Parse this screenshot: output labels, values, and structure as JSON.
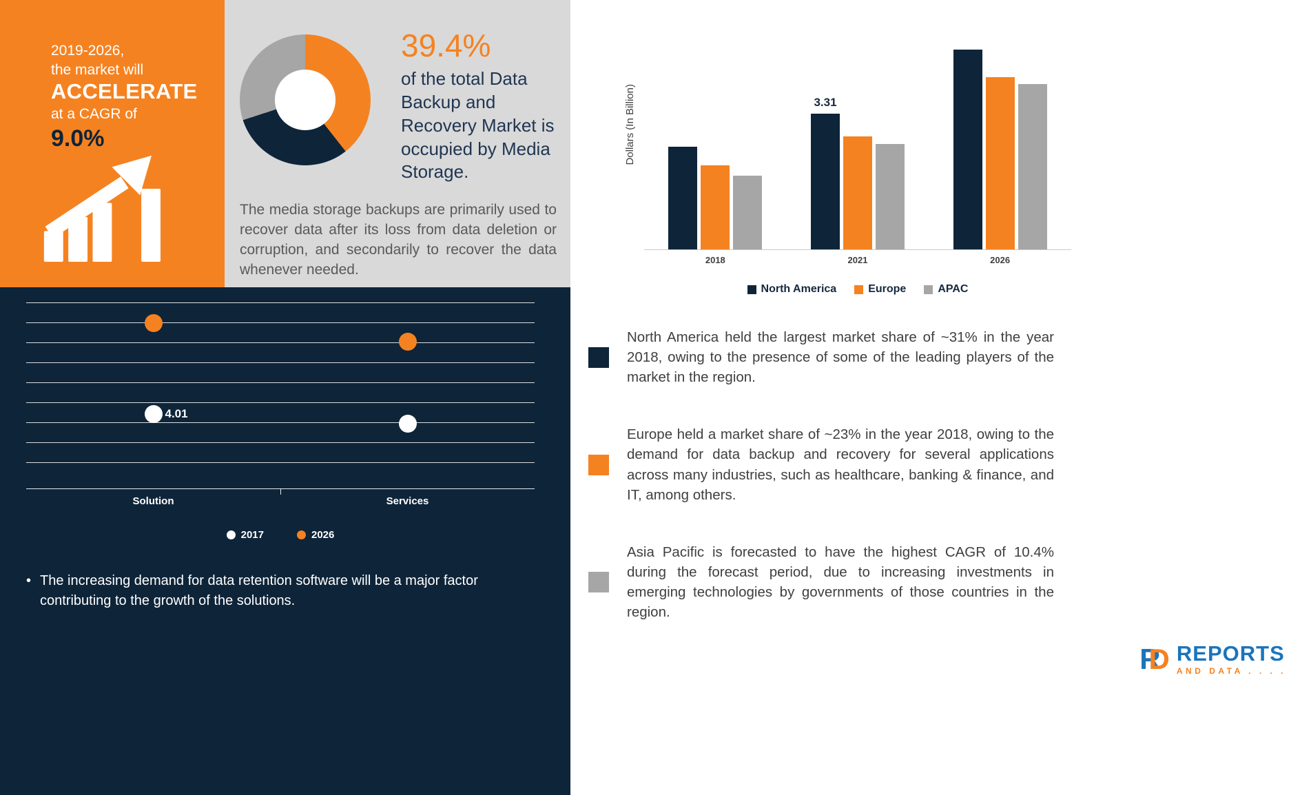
{
  "colors": {
    "orange": "#F58220",
    "navy": "#0E2439",
    "panel_gray": "#D9D9D9",
    "series_gray": "#A6A6A6",
    "text_gray": "#3F3F3F",
    "logo_blue": "#1A75BB"
  },
  "accelerate_panel": {
    "period": "2019-2026,",
    "line2": "the market will",
    "headline": "ACCELERATE",
    "line4": "at a CAGR of",
    "cagr": "9.0%"
  },
  "media_storage_panel": {
    "stat": "39.4%",
    "stat_caption": "of the total Data Backup and Recovery Market is occupied by Media Storage.",
    "description": "The media storage backups are primarily used to recover data after its loss from data deletion or corruption, and secondarily to recover the data whenever needed."
  },
  "segment_panel": {
    "marker": "•",
    "bullet": "The increasing demand for data retention software will be a major factor contributing to the growth of the solutions."
  },
  "regional_panel": {
    "bullets": [
      {
        "color": "#0E2439",
        "text": "North America held the largest market share of ~31% in the year 2018, owing to the presence of some of the leading players of the market in the region."
      },
      {
        "color": "#F58220",
        "text": "Europe held a market share of ~23% in the year 2018, owing to the demand for data backup and recovery for several applications across many industries, such as healthcare, banking & finance, and IT, among others."
      },
      {
        "color": "#A6A6A6",
        "text": "Asia Pacific is forecasted to have the highest CAGR of 10.4% during the forecast period, due to increasing investments in emerging technologies by governments of those countries in the region."
      }
    ],
    "logo": {
      "mark_r": "R",
      "mark_d": "D",
      "brand": "REPORTS",
      "tagline": "AND DATA . . . ."
    }
  },
  "chart_data": [
    {
      "id": "media-storage-donut",
      "type": "pie",
      "donut": true,
      "labels": [
        "Media Storage",
        "Other",
        "Other"
      ],
      "values": [
        39.4,
        30.6,
        30.0
      ],
      "colors": [
        "#F58220",
        "#0E2439",
        "#A6A6A6"
      ],
      "title": "39.4% of the total Data Backup and Recovery Market is occupied by Media Storage"
    },
    {
      "id": "regional-bar-chart",
      "type": "bar",
      "categories": [
        "2018",
        "2021",
        "2026"
      ],
      "series": [
        {
          "name": "North America",
          "color": "#0E2439",
          "values": [
            2.5,
            3.31,
            4.86
          ]
        },
        {
          "name": "Europe",
          "color": "#F58220",
          "values": [
            2.04,
            2.75,
            4.19
          ]
        },
        {
          "name": "APAC",
          "color": "#A6A6A6",
          "values": [
            1.8,
            2.56,
            4.03
          ]
        }
      ],
      "ylabel": "Dollars (In Billion)",
      "ylim": [
        0,
        5.2
      ],
      "legend_position": "bottom",
      "grid": false,
      "data_label": {
        "series": "North America",
        "category": "2021",
        "text": "3.31"
      }
    },
    {
      "id": "segment-dot-chart",
      "type": "scatter",
      "categories": [
        "Solution",
        "Services"
      ],
      "x_percent": [
        25,
        75
      ],
      "series": [
        {
          "name": "2017",
          "color": "#FFFFFF",
          "values": [
            4.01,
            3.5
          ]
        },
        {
          "name": "2026",
          "color": "#F58220",
          "values": [
            8.9,
            7.9
          ]
        }
      ],
      "ylim": [
        0,
        10
      ],
      "grid": true,
      "legend_position": "bottom",
      "data_label": {
        "series": "2017",
        "category": "Solution",
        "text": "4.01"
      }
    }
  ]
}
